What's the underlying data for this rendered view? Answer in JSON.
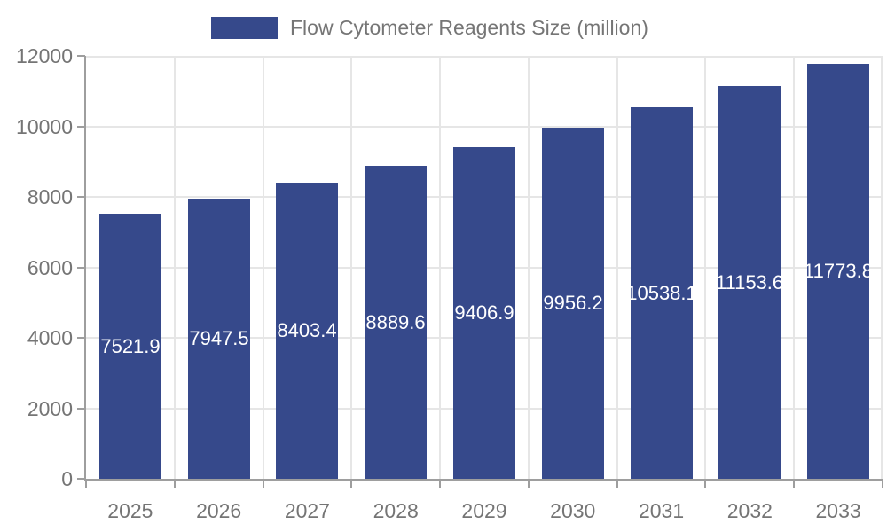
{
  "legend": {
    "series_label": "Flow Cytometer Reagents Size (million)"
  },
  "chart_data": {
    "type": "bar",
    "title": "Flow Cytometer Reagents Size (million)",
    "categories": [
      "2025",
      "2026",
      "2027",
      "2028",
      "2029",
      "2030",
      "2031",
      "2032",
      "2033"
    ],
    "values": [
      7521.9,
      7947.5,
      8403.4,
      8889.6,
      9406.9,
      9956.2,
      10538.1,
      11153.6,
      11773.8
    ],
    "bar_labels": [
      "7521.9",
      "7947.5",
      "8403.4",
      "8889.6",
      "9406.9",
      "9956.2",
      "10538.1",
      "11153.6",
      "11773.8"
    ],
    "xlabel": "",
    "ylabel": "",
    "ylim": [
      0,
      12000
    ],
    "yticks": [
      0,
      2000,
      4000,
      6000,
      8000,
      10000,
      12000
    ],
    "grid": true,
    "legend_position": "top-center",
    "colors": {
      "bar": "#36498B",
      "bar_label": "#FFFFFF",
      "grid": "#E6E6E6",
      "axis": "#9E9E9E",
      "tick_text": "#757575",
      "legend_text": "#757575",
      "background": "#FFFFFF"
    }
  }
}
